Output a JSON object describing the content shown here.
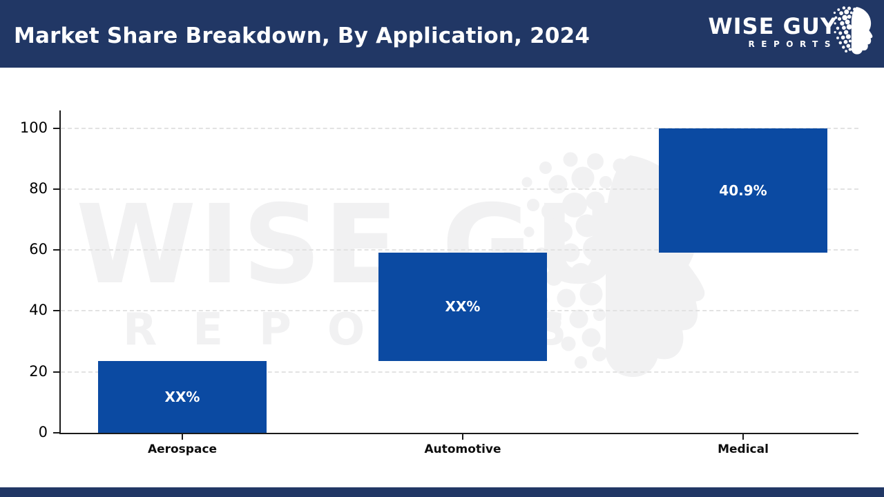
{
  "header": {
    "title": "Market Share Breakdown, By Application, 2024",
    "logo": {
      "line1": "WISE GUY",
      "line2": "REPORTS"
    }
  },
  "watermark": {
    "line1": "WISE GUY",
    "line2": "REPORTS"
  },
  "colors": {
    "header_bg": "#213765",
    "footer_bg": "#213765",
    "bar": "#0b4aa2",
    "grid": "#e2e2e2",
    "axis": "#1a1a1a",
    "tick_label": "#000000",
    "category_label": "#0d0d0d",
    "bar_label": "#ffffff",
    "watermark": "#f1f1f2"
  },
  "chart_data": {
    "type": "bar",
    "subtype": "waterfall-segments",
    "title": "Market Share Breakdown, By Application, 2024",
    "categories": [
      "Aerospace",
      "Automotive",
      "Medical"
    ],
    "segments": [
      {
        "category": "Aerospace",
        "start": 0,
        "end": 23.6,
        "label": "XX%"
      },
      {
        "category": "Automotive",
        "start": 23.6,
        "end": 59.1,
        "label": "XX%"
      },
      {
        "category": "Medical",
        "start": 59.1,
        "end": 100,
        "label": "40.9%"
      }
    ],
    "yticks": [
      0,
      20,
      40,
      60,
      80,
      100
    ],
    "ylim": [
      0,
      106
    ],
    "xlabel": "",
    "ylabel": "",
    "grid": "horizontal-dashed",
    "legend": "none"
  }
}
